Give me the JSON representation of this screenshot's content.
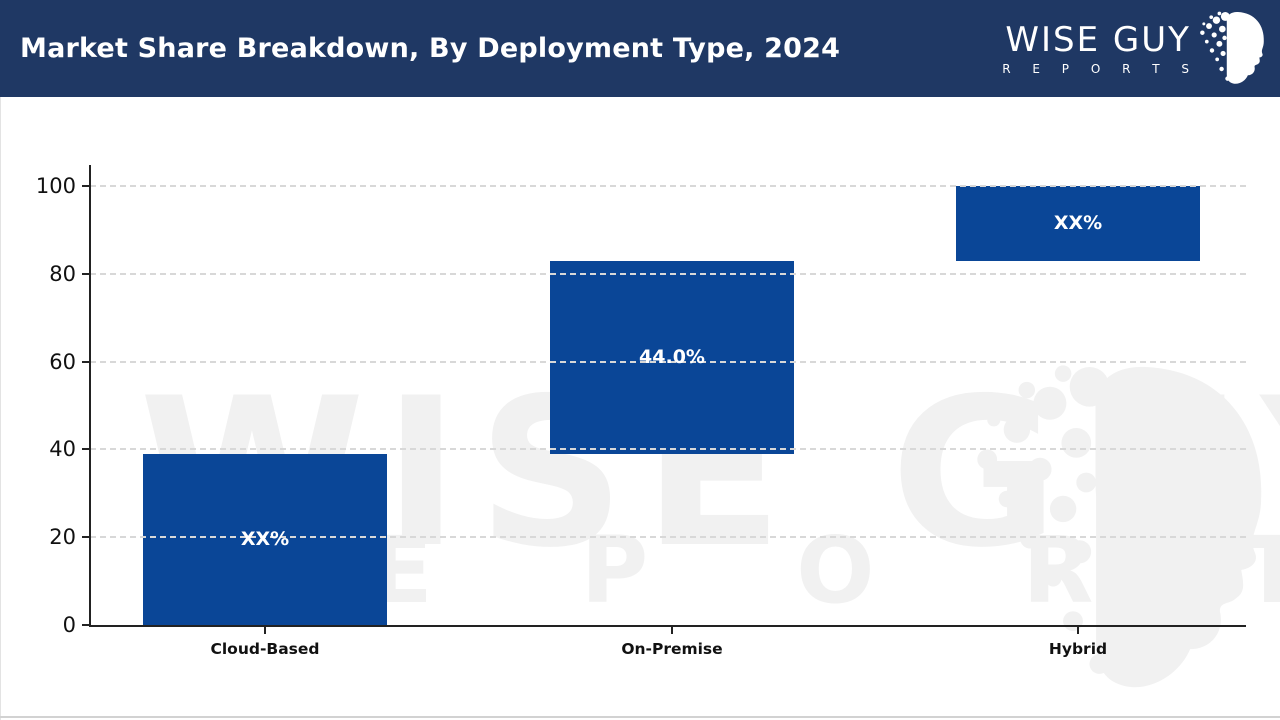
{
  "header": {
    "brand": {
      "line1": "WISE GUY",
      "line2": "R E P O R T S"
    }
  },
  "watermark": {
    "line1": "WISE GUY",
    "line2": "R E P O R T S"
  },
  "colors": {
    "header_bg": "#1f3864",
    "header_text": "#ffffff",
    "bar": "#0a4697",
    "bar_label": "#ffffff",
    "grid": "#d8d8d8",
    "axis": "#222222",
    "watermark": "#f1f1f1"
  },
  "chart_data": {
    "type": "bar",
    "subtype": "waterfall",
    "title": "Market Share Breakdown, By Deployment Type, 2024",
    "xlabel": "",
    "ylabel": "",
    "categories": [
      "Cloud-Based",
      "On-Premise",
      "Hybrid"
    ],
    "segments": [
      {
        "category": "Cloud-Based",
        "start": 0,
        "end": 39,
        "label": "XX%"
      },
      {
        "category": "On-Premise",
        "start": 39,
        "end": 83,
        "label": "44.0%"
      },
      {
        "category": "Hybrid",
        "start": 83,
        "end": 100,
        "label": "XX%"
      }
    ],
    "ylim": [
      0,
      100
    ],
    "yticks": [
      0,
      20,
      40,
      60,
      80,
      100
    ],
    "grid": "horizontal-dashed",
    "legend": "none"
  }
}
